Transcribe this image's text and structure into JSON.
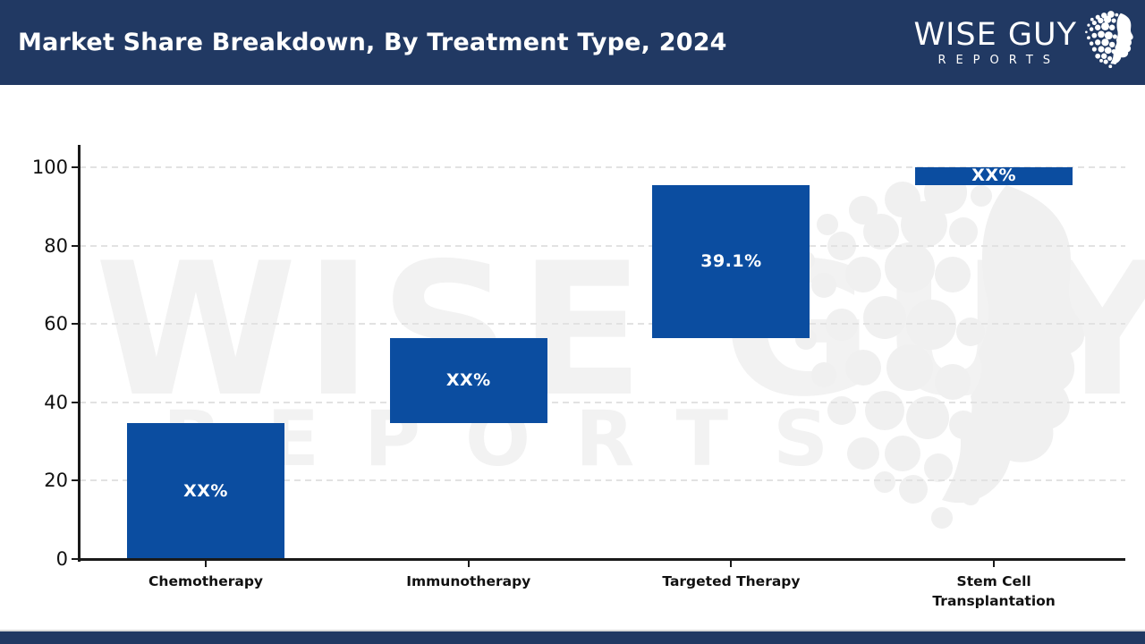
{
  "header": {
    "title": "Market Share Breakdown, By Treatment Type, 2024",
    "logo": {
      "line1": "WISE GUY",
      "line2": "REPORTS"
    }
  },
  "watermark": {
    "line1": "WISE GUY",
    "line2": "REPORTS"
  },
  "colors": {
    "header_navy": "#213963",
    "bar_blue": "#0b4da0",
    "grid_gray": "#e2e2e2",
    "watermark_gray": "#f2f2f2",
    "axis_black": "#1a1a1a",
    "hairline_gray": "#d9d9d9"
  },
  "chart_data": {
    "type": "bar",
    "subtype": "floating-waterfall",
    "title": "Market Share Breakdown, By Treatment Type, 2024",
    "categories": [
      "Chemotherapy",
      "Immunotherapy",
      "Targeted Therapy",
      "Stem Cell\nTransplantation"
    ],
    "bars": [
      {
        "category": "Chemotherapy",
        "start": 0,
        "end": 34.6,
        "label": "XX%"
      },
      {
        "category": "Immunotherapy",
        "start": 34.6,
        "end": 56.4,
        "label": "XX%"
      },
      {
        "category": "Targeted Therapy",
        "start": 56.4,
        "end": 95.5,
        "label": "39.1%"
      },
      {
        "category": "Stem Cell Transplantation",
        "start": 95.5,
        "end": 100,
        "label": "XX%"
      }
    ],
    "ylim": [
      0,
      106
    ],
    "yticks": [
      0,
      20,
      40,
      60,
      80,
      100
    ],
    "grid": "dashed-horizontal",
    "legend": "none",
    "bar_color": "#0b4da0",
    "label_color": "#ffffff"
  }
}
